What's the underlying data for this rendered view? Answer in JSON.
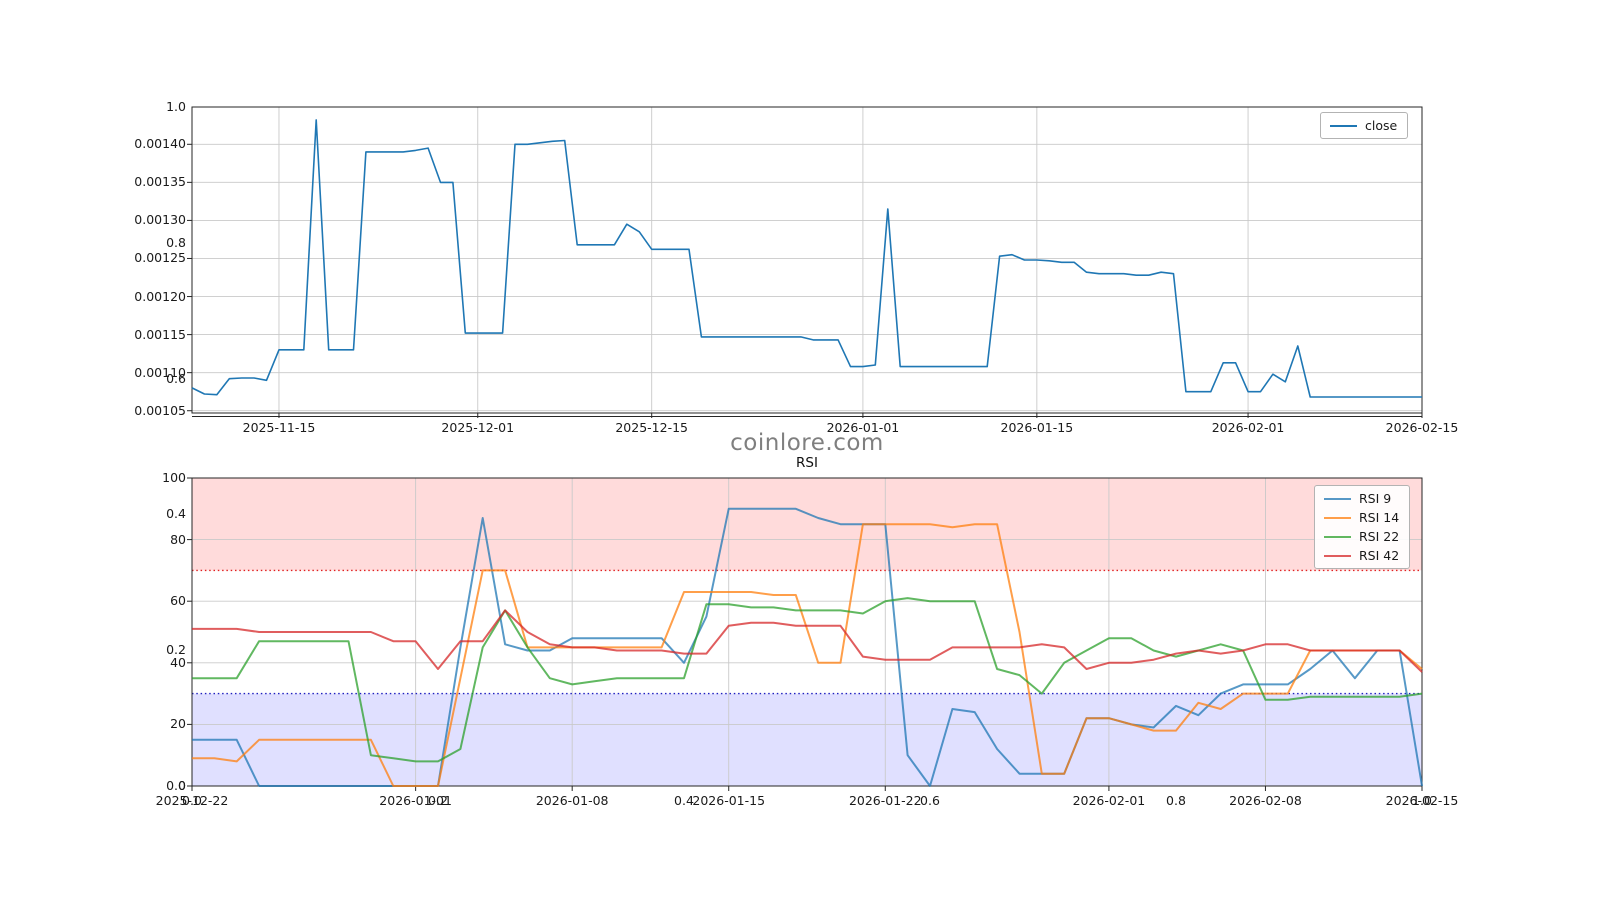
{
  "watermark": "coinlore.com",
  "overlay_axis": {
    "left_labels": [
      "1.0",
      "0.8",
      "0.6",
      "0.4",
      "0.2",
      "0.0"
    ],
    "bottom_labels": [
      "0.0",
      "0.2",
      "0.4",
      "0.6",
      "0.8",
      "1.0"
    ]
  },
  "chart_data": [
    {
      "id": "price",
      "type": "line",
      "title": "",
      "grid": true,
      "legend_position": "upper right",
      "x_unit": "day",
      "x_count": 100,
      "x_start": "2025-11-08",
      "x_end": "2026-02-15",
      "ylim": [
        0.001047,
        0.001449
      ],
      "yticks": [
        {
          "value": 0.00105,
          "label": "0.00105"
        },
        {
          "value": 0.0011,
          "label": "0.00110"
        },
        {
          "value": 0.00115,
          "label": "0.00115"
        },
        {
          "value": 0.0012,
          "label": "0.00120"
        },
        {
          "value": 0.00125,
          "label": "0.00125"
        },
        {
          "value": 0.0013,
          "label": "0.00130"
        },
        {
          "value": 0.00135,
          "label": "0.00135"
        },
        {
          "value": 0.0014,
          "label": "0.00140"
        }
      ],
      "xticks": [
        {
          "i": 7,
          "label": "2025-11-15"
        },
        {
          "i": 23,
          "label": "2025-12-01"
        },
        {
          "i": 37,
          "label": "2025-12-15"
        },
        {
          "i": 54,
          "label": "2026-01-01"
        },
        {
          "i": 68,
          "label": "2026-01-15"
        },
        {
          "i": 85,
          "label": "2026-02-01"
        },
        {
          "i": 99,
          "label": "2026-02-15"
        }
      ],
      "series": [
        {
          "name": "close",
          "color": "#1f77b4",
          "opacity": 1,
          "width": 1.6,
          "values": [
            0.00108,
            0.001072,
            0.001071,
            0.001092,
            0.001093,
            0.001093,
            0.00109,
            0.00113,
            0.00113,
            0.00113,
            0.001432,
            0.00113,
            0.00113,
            0.00113,
            0.00139,
            0.00139,
            0.00139,
            0.00139,
            0.001392,
            0.001395,
            0.00135,
            0.00135,
            0.001152,
            0.001152,
            0.001152,
            0.001152,
            0.0014,
            0.0014,
            0.001402,
            0.001404,
            0.001405,
            0.001268,
            0.001268,
            0.001268,
            0.001268,
            0.001295,
            0.001285,
            0.001262,
            0.001262,
            0.001262,
            0.001262,
            0.001147,
            0.001147,
            0.001147,
            0.001147,
            0.001147,
            0.001147,
            0.001147,
            0.001147,
            0.001147,
            0.001143,
            0.001143,
            0.001143,
            0.001108,
            0.001108,
            0.00111,
            0.001315,
            0.001108,
            0.001108,
            0.001108,
            0.001108,
            0.001108,
            0.001108,
            0.001108,
            0.001108,
            0.001253,
            0.001255,
            0.001248,
            0.001248,
            0.001247,
            0.001245,
            0.001245,
            0.001232,
            0.00123,
            0.00123,
            0.00123,
            0.001228,
            0.001228,
            0.001232,
            0.00123,
            0.001075,
            0.001075,
            0.001075,
            0.001113,
            0.001113,
            0.001075,
            0.001075,
            0.001098,
            0.001088,
            0.001135,
            0.001068,
            0.001068,
            0.001068,
            0.001068,
            0.001068,
            0.001068,
            0.001068,
            0.001068,
            0.001068,
            0.001068
          ]
        }
      ]
    },
    {
      "id": "rsi",
      "type": "line",
      "title": "RSI",
      "grid": true,
      "legend_position": "upper right",
      "x_unit": "day",
      "x_count": 56,
      "x_start": "2025-12-22",
      "x_end": "2026-02-15",
      "ylim": [
        0,
        100
      ],
      "yticks": [
        {
          "value": 0,
          "label": "0"
        },
        {
          "value": 20,
          "label": "20"
        },
        {
          "value": 40,
          "label": "40"
        },
        {
          "value": 60,
          "label": "60"
        },
        {
          "value": 80,
          "label": "80"
        },
        {
          "value": 100,
          "label": "100"
        }
      ],
      "xticks": [
        {
          "i": 0,
          "label": "2025-12-22"
        },
        {
          "i": 10,
          "label": "2026-01-01"
        },
        {
          "i": 17,
          "label": "2026-01-08"
        },
        {
          "i": 24,
          "label": "2026-01-15"
        },
        {
          "i": 31,
          "label": "2026-01-22"
        },
        {
          "i": 41,
          "label": "2026-02-01"
        },
        {
          "i": 48,
          "label": "2026-02-08"
        },
        {
          "i": 55,
          "label": "2026-02-15"
        }
      ],
      "bands": [
        {
          "name": "overbought",
          "from": 70,
          "to": 100,
          "color": "rgba(255,0,0,0.14)"
        },
        {
          "name": "oversold",
          "from": 0,
          "to": 30,
          "color": "rgba(0,0,255,0.12)"
        }
      ],
      "hlines": [
        {
          "value": 70,
          "color": "#e02020",
          "style": "dotted"
        },
        {
          "value": 30,
          "color": "#1f1fbf",
          "style": "dotted"
        }
      ],
      "series": [
        {
          "name": "RSI 9",
          "color": "#1f77b4",
          "opacity": 0.75,
          "width": 2,
          "values": [
            15,
            15,
            15,
            0,
            0,
            0,
            0,
            0,
            0,
            0,
            0,
            0,
            45,
            87,
            46,
            44,
            44,
            48,
            48,
            48,
            48,
            48,
            40,
            55,
            90,
            90,
            90,
            90,
            87,
            85,
            85,
            85,
            10,
            0,
            25,
            24,
            12,
            4,
            4,
            4,
            22,
            22,
            20,
            19,
            26,
            23,
            30,
            33,
            33,
            33,
            38,
            44,
            35,
            44,
            44,
            0
          ]
        },
        {
          "name": "RSI 14",
          "color": "#ff7f0e",
          "opacity": 0.75,
          "width": 2,
          "values": [
            9,
            9,
            8,
            15,
            15,
            15,
            15,
            15,
            15,
            0,
            0,
            0,
            35,
            70,
            70,
            45,
            45,
            45,
            45,
            45,
            45,
            45,
            63,
            63,
            63,
            63,
            62,
            62,
            40,
            40,
            85,
            85,
            85,
            85,
            84,
            85,
            85,
            50,
            4,
            4,
            22,
            22,
            20,
            18,
            18,
            27,
            25,
            30,
            30,
            30,
            44,
            44,
            44,
            44,
            44,
            38
          ]
        },
        {
          "name": "RSI 22",
          "color": "#2ca02c",
          "opacity": 0.75,
          "width": 2,
          "values": [
            35,
            35,
            35,
            47,
            47,
            47,
            47,
            47,
            10,
            9,
            8,
            8,
            12,
            45,
            57,
            45,
            35,
            33,
            34,
            35,
            35,
            35,
            35,
            59,
            59,
            58,
            58,
            57,
            57,
            57,
            56,
            60,
            61,
            60,
            60,
            60,
            38,
            36,
            30,
            40,
            44,
            48,
            48,
            44,
            42,
            44,
            46,
            44,
            28,
            28,
            29,
            29,
            29,
            29,
            29,
            30
          ]
        },
        {
          "name": "RSI 42",
          "color": "#d62728",
          "opacity": 0.75,
          "width": 2,
          "values": [
            51,
            51,
            51,
            50,
            50,
            50,
            50,
            50,
            50,
            47,
            47,
            38,
            47,
            47,
            57,
            50,
            46,
            45,
            45,
            44,
            44,
            44,
            43,
            43,
            52,
            53,
            53,
            52,
            52,
            52,
            42,
            41,
            41,
            41,
            45,
            45,
            45,
            45,
            46,
            45,
            38,
            40,
            40,
            41,
            43,
            44,
            43,
            44,
            46,
            46,
            44,
            44,
            44,
            44,
            44,
            37
          ]
        }
      ]
    }
  ]
}
